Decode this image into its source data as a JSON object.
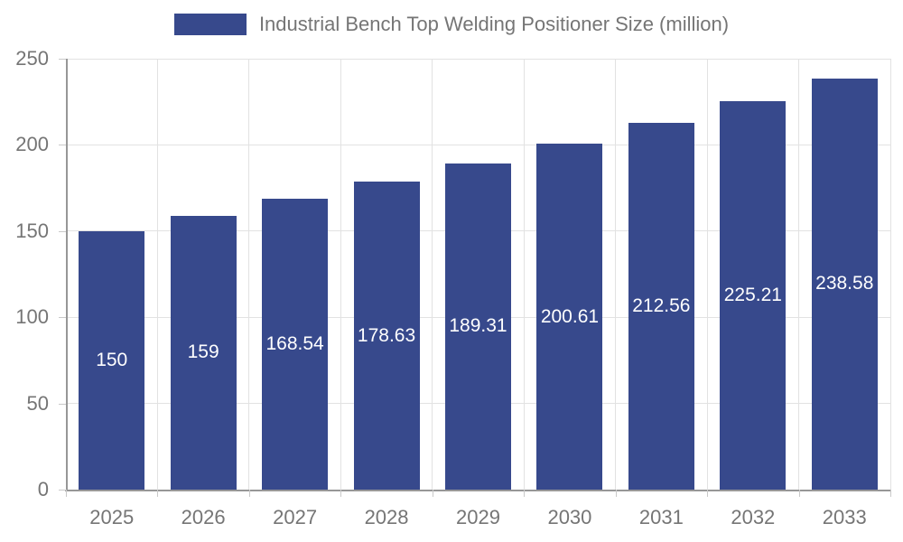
{
  "legend": {
    "label": "Industrial Bench Top Welding Positioner Size (million)",
    "swatch_color": "#37498c"
  },
  "chart_data": {
    "type": "bar",
    "title": "Industrial Bench Top Welding Positioner Size (million)",
    "categories": [
      "2025",
      "2026",
      "2027",
      "2028",
      "2029",
      "2030",
      "2031",
      "2032",
      "2033"
    ],
    "values": [
      150,
      159,
      168.54,
      178.63,
      189.31,
      200.61,
      212.56,
      225.21,
      238.58
    ],
    "value_labels": [
      "150",
      "159",
      "168.54",
      "178.63",
      "189.31",
      "200.61",
      "212.56",
      "225.21",
      "238.58"
    ],
    "xlabel": "",
    "ylabel": "",
    "ylim": [
      0,
      250
    ],
    "yticks": [
      0,
      50,
      100,
      150,
      200,
      250
    ],
    "grid": true,
    "legend_position": "top",
    "bar_color": "#37498c",
    "value_label_color": "#ffffff",
    "axis_text_color": "#757575",
    "axis_line_color": "#979797",
    "gridline_color": "#e2e2e2"
  }
}
